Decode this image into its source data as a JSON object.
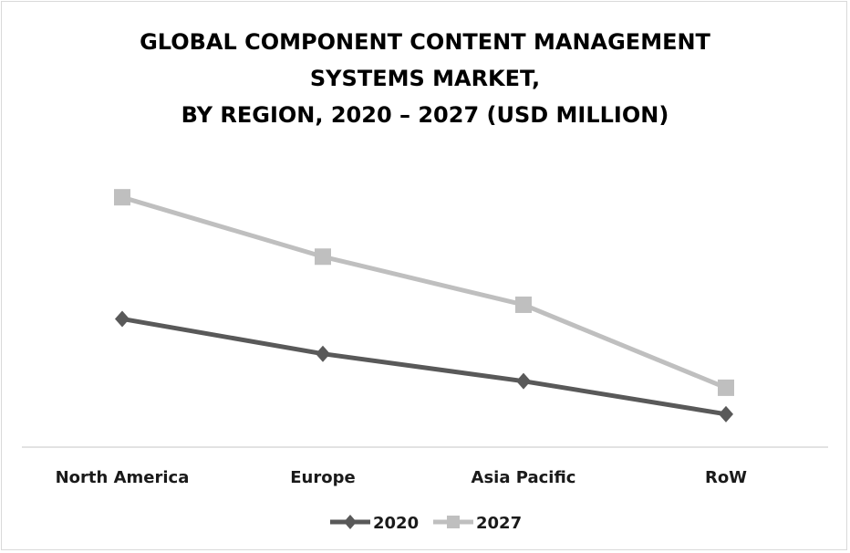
{
  "chart_data": {
    "type": "line",
    "title_lines": [
      "GLOBAL COMPONENT CONTENT MANAGEMENT",
      "SYSTEMS MARKET,",
      "BY REGION, 2020 – 2027 (USD MILLION)"
    ],
    "categories": [
      "North America",
      "Europe",
      "Asia Pacific",
      "RoW"
    ],
    "series": [
      {
        "name": "2020",
        "values": [
          136,
          99,
          70,
          35
        ],
        "color": "#595959",
        "marker": "diamond"
      },
      {
        "name": "2027",
        "values": [
          265,
          202,
          151,
          63
        ],
        "color": "#bfbfbf",
        "marker": "square"
      }
    ],
    "ylim": [
      0,
      300
    ],
    "grid": false,
    "legend_position": "bottom",
    "xlabel": "",
    "ylabel": ""
  }
}
